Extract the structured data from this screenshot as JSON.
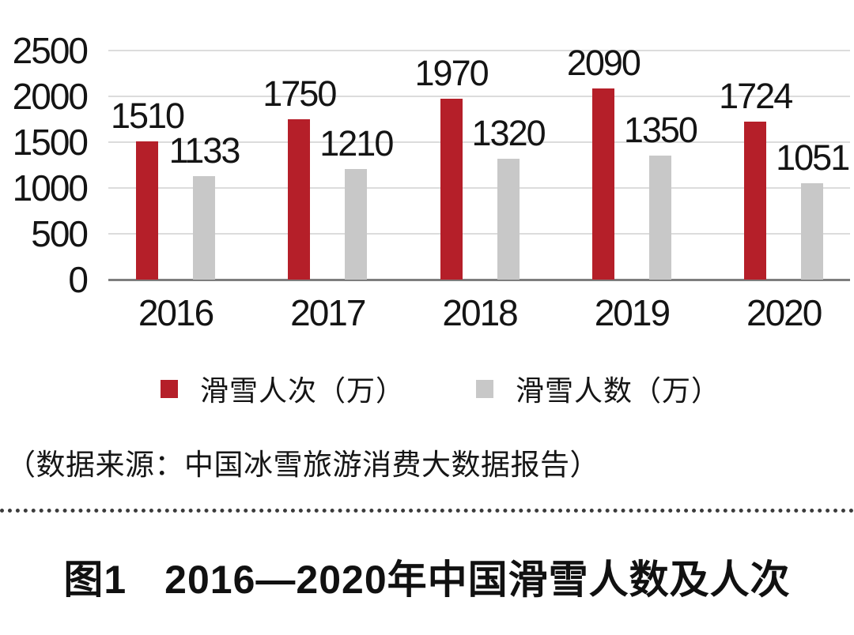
{
  "chart_data": {
    "type": "bar",
    "categories": [
      "2016",
      "2017",
      "2018",
      "2019",
      "2020"
    ],
    "series": [
      {
        "name": "滑雪人次（万）",
        "color": "#b51f29",
        "values": [
          1510,
          1750,
          1970,
          2090,
          1724
        ]
      },
      {
        "name": "滑雪人数（万）",
        "color": "#c8c8c8",
        "values": [
          1133,
          1210,
          1320,
          1350,
          1051
        ]
      }
    ],
    "title": "图1　2016—2020年中国滑雪人数及人次",
    "xlabel": "",
    "ylabel": "",
    "ylim": [
      0,
      2500
    ],
    "yticks": [
      0,
      500,
      1000,
      1500,
      2000,
      2500
    ],
    "grid": true,
    "legend_position": "bottom",
    "value_labels": true
  },
  "colors": {
    "series1": "#b51f29",
    "series2": "#c8c8c8",
    "gridline": "#dcdcdc",
    "axis_line": "#7e7e7e"
  },
  "source_note": "（数据来源：中国冰雪旅游消费大数据报告）",
  "caption": {
    "label": "图1",
    "text": "2016—2020年中国滑雪人数及人次"
  }
}
